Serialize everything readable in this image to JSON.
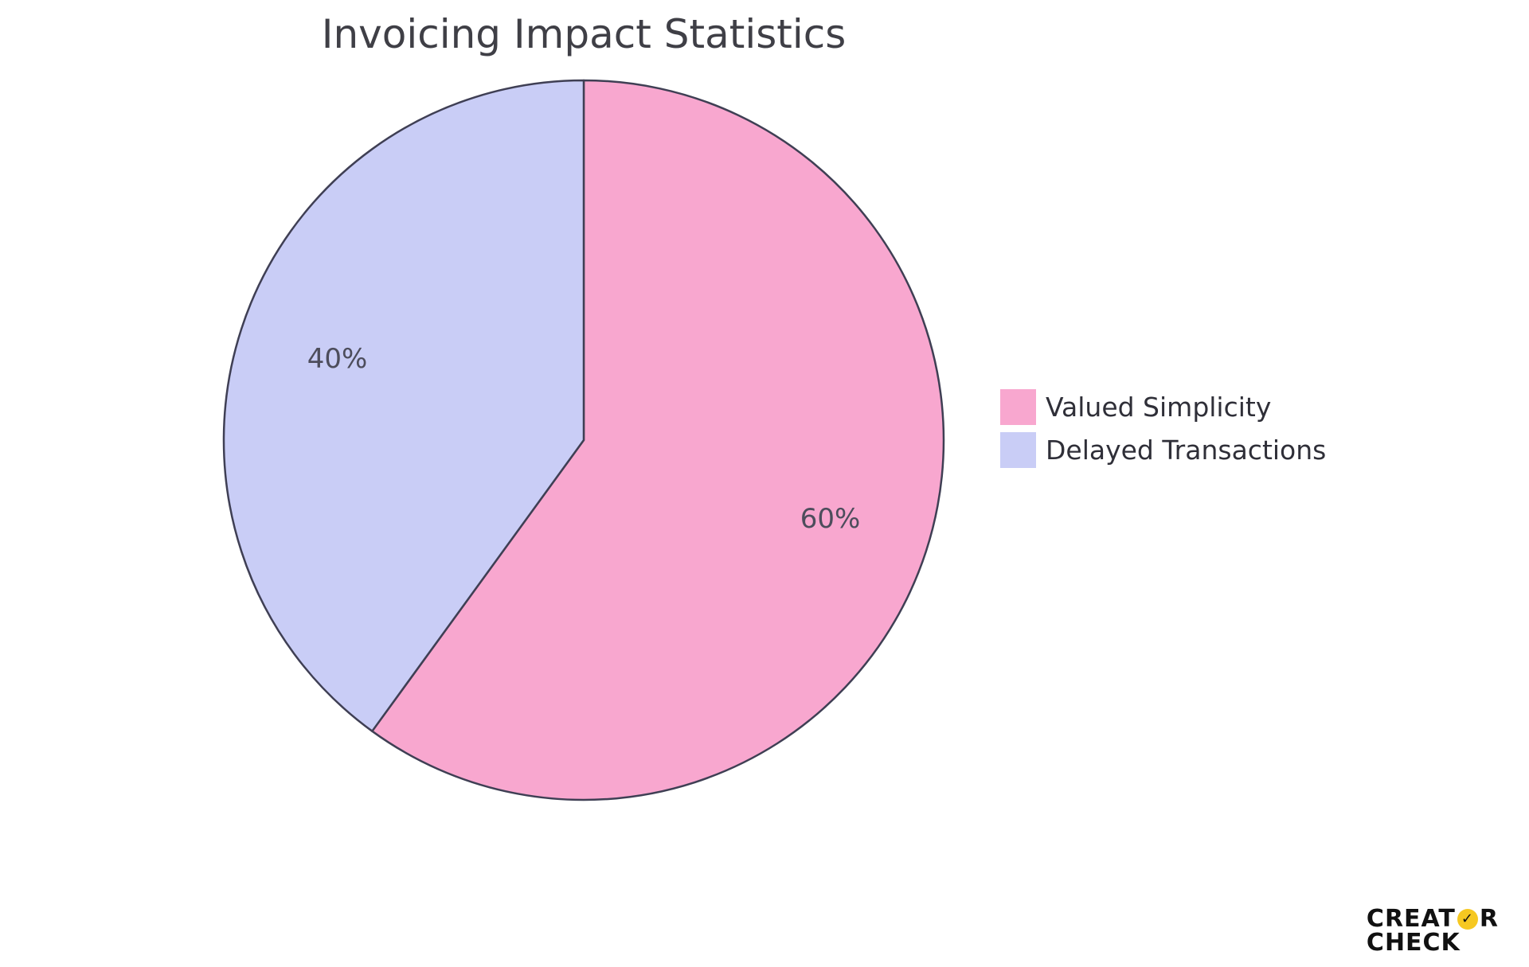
{
  "chart_data": {
    "type": "pie",
    "title": "Invoicing Impact Statistics",
    "labels": [
      "Valued Simplicity",
      "Delayed Transactions"
    ],
    "values": [
      60,
      40
    ],
    "colors": [
      "#f8a7cf",
      "#c9cdf6"
    ],
    "slice_stroke_color": "#3f3f54",
    "label_text_color": "#4d4d5c",
    "start_angle_deg": 0,
    "direction": "clockwise",
    "legend_position": "right"
  },
  "legend": {
    "items": [
      {
        "label": "Valued Simplicity",
        "color": "#f8a7cf"
      },
      {
        "label": "Delayed Transactions",
        "color": "#c9cdf6"
      }
    ]
  },
  "watermark": {
    "line1_prefix": "CREAT",
    "line1_suffix": "R",
    "line2": "CHECK",
    "icon": "check-circle-icon",
    "icon_glyph": "✓",
    "icon_color": "#f6c821"
  }
}
